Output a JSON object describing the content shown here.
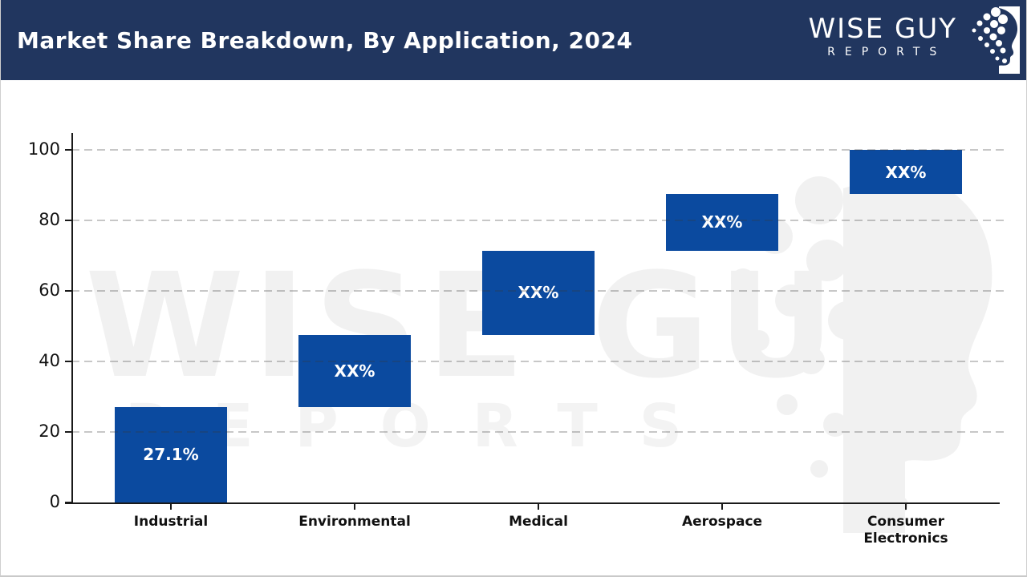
{
  "header": {
    "title": "Market Share Breakdown, By Application, 2024",
    "logo": {
      "line1": "WISE GUY",
      "line2": "REPORTS"
    }
  },
  "watermark": {
    "line1": "WISE GUY",
    "line2": "REPORTS"
  },
  "colors": {
    "header_bg": "#21365f",
    "bar": "#0b4a9f",
    "bar_label": "#ffffff",
    "axis": "#1a1a1a",
    "gridline": "#d7d7d7",
    "watermark": "#f1f1f1",
    "title_text": "#ffffff"
  },
  "chart_data": {
    "type": "bar",
    "subtype": "waterfall-floating-bars",
    "title": "Market Share Breakdown, By Application, 2024",
    "categories": [
      "Industrial",
      "Environmental",
      "Medical",
      "Aerospace",
      "Consumer Electronics"
    ],
    "segments": [
      {
        "category": "Industrial",
        "start": 0,
        "end": 27.1,
        "label": "27.1%"
      },
      {
        "category": "Environmental",
        "start": 27.1,
        "end": 47.5,
        "label": "XX%"
      },
      {
        "category": "Medical",
        "start": 47.5,
        "end": 71.4,
        "label": "XX%"
      },
      {
        "category": "Aerospace",
        "start": 71.4,
        "end": 87.5,
        "label": "XX%"
      },
      {
        "category": "Consumer Electronics",
        "start": 87.5,
        "end": 100,
        "label": "XX%"
      }
    ],
    "xlabel": "",
    "ylabel": "",
    "ylim": [
      0,
      100
    ],
    "yticks": [
      0,
      20,
      40,
      60,
      80,
      100
    ],
    "grid": "horizontal-dashed-over-bars",
    "legend": "none",
    "bar_color": "#0b4a9f",
    "label_color": "#ffffff"
  }
}
